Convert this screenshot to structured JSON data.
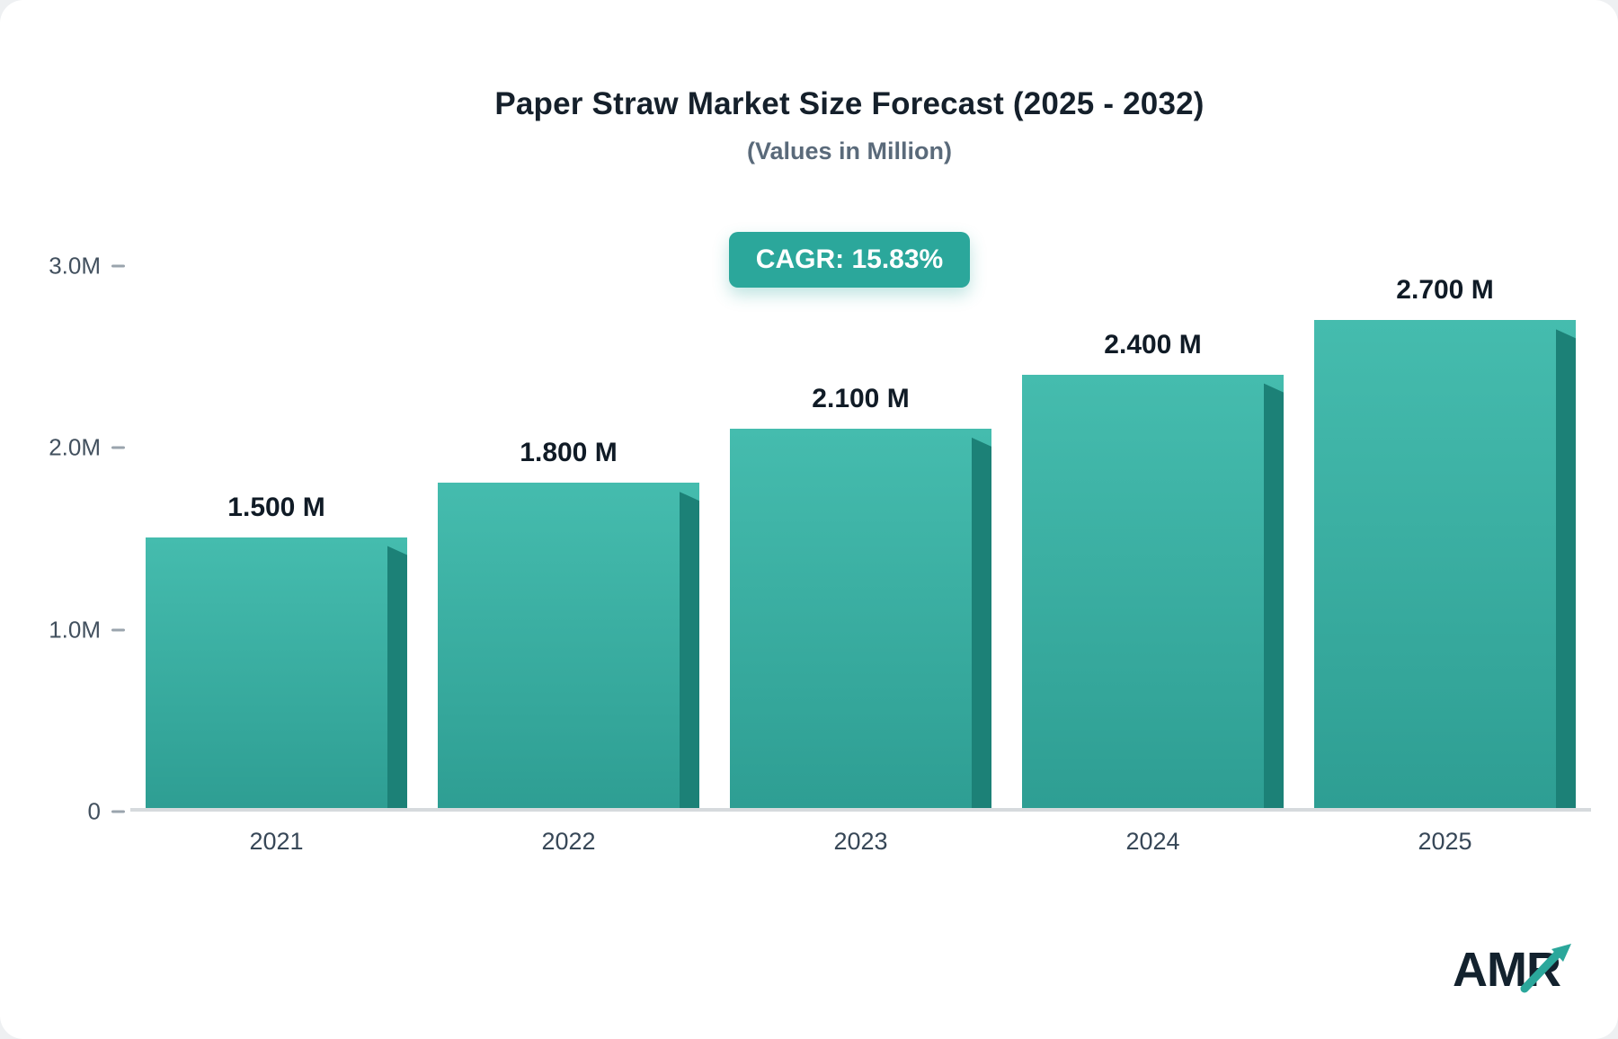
{
  "title": "Paper Straw Market Size Forecast (2025 - 2032)",
  "subtitle": "(Values in Million)",
  "badge": {
    "label": "CAGR: 15.83%",
    "bg": "#2BA79B"
  },
  "logo": {
    "text": "AMR",
    "arrow_color": "#2BA79B"
  },
  "chart_data": {
    "type": "bar",
    "title": "Paper Straw Market Size Forecast (2025 - 2032)",
    "subtitle": "(Values in Million)",
    "categories": [
      "2021",
      "2022",
      "2023",
      "2024",
      "2025"
    ],
    "values": [
      1.5,
      1.8,
      2.1,
      2.4,
      2.7
    ],
    "value_labels": [
      "1.500 M",
      "1.800 M",
      "2.100 M",
      "2.400 M",
      "2.700 M"
    ],
    "unit": "Million",
    "xlabel": "",
    "ylabel": "",
    "ylim": [
      0,
      3.0
    ],
    "y_ticks": [
      {
        "value": 3.0,
        "label": "3.0M"
      },
      {
        "value": 2.0,
        "label": "2.0M"
      },
      {
        "value": 1.0,
        "label": "1.0M"
      },
      {
        "value": 0,
        "label": "0"
      }
    ],
    "grid": false,
    "legend": false,
    "bar_color_top": "#45BCAE",
    "bar_color_bottom": "#2E9E93",
    "bar_side_color": "#1C8177",
    "annotation": "CAGR: 15.83%"
  }
}
